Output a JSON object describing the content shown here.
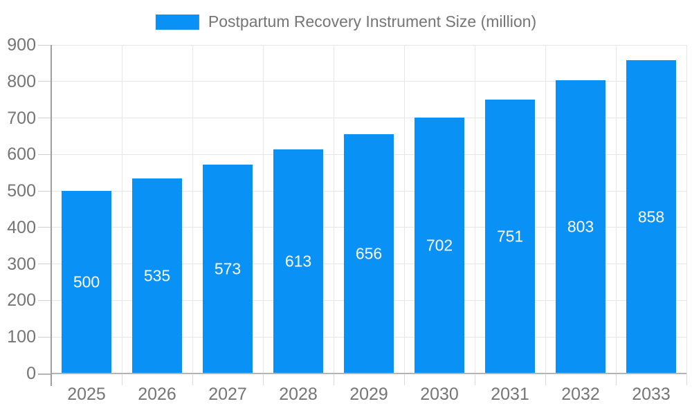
{
  "chart_data": {
    "type": "bar",
    "title": "Postpartum Recovery Instrument Size (million)",
    "series_name": "Postpartum Recovery Instrument Size (million)",
    "categories": [
      "2025",
      "2026",
      "2027",
      "2028",
      "2029",
      "2030",
      "2031",
      "2032",
      "2033"
    ],
    "values": [
      500,
      535,
      573,
      613,
      656,
      702,
      751,
      803,
      858
    ],
    "value_labels_shown": true,
    "xlabel": "",
    "ylabel": "",
    "ylim": [
      0,
      900
    ],
    "ytick_step": 100,
    "yticks": [
      0,
      100,
      200,
      300,
      400,
      500,
      600,
      700,
      800,
      900
    ],
    "grid": true,
    "legend_position": "top-center",
    "colors": {
      "bar": "#0991f5",
      "value_label": "#ffffff",
      "axis_text": "#757575",
      "grid": "#e6e6e6",
      "axis_line": "#9e9e9e",
      "baseline": "#b3b3b3",
      "background": "#ffffff"
    }
  }
}
